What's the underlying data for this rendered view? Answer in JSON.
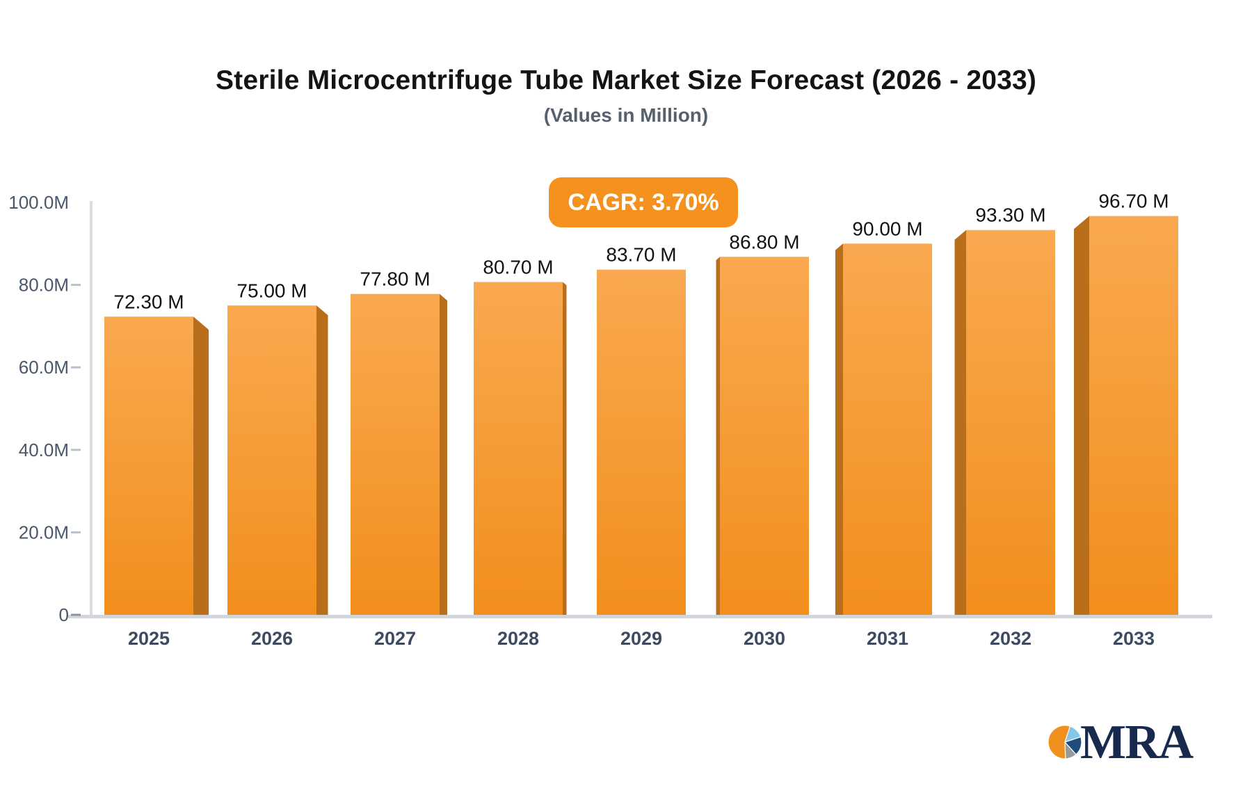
{
  "title": "Sterile Microcentrifuge Tube Market Size Forecast (2026 - 2033)",
  "subtitle": "(Values in Million)",
  "badge": {
    "label": "CAGR: 3.70%",
    "bg_color": "#F5911E",
    "text_color": "#FFFFFF"
  },
  "chart_data": {
    "type": "bar",
    "title": "Sterile Microcentrifuge Tube Market Size Forecast (2026 - 2033)",
    "subtitle": "(Values in Million)",
    "categories": [
      "2025",
      "2026",
      "2027",
      "2028",
      "2029",
      "2030",
      "2031",
      "2032",
      "2033"
    ],
    "values": [
      72.3,
      75.0,
      77.8,
      80.7,
      83.7,
      86.8,
      90.0,
      93.3,
      96.7
    ],
    "value_labels": [
      "72.30 M",
      "75.00 M",
      "77.80 M",
      "80.70 M",
      "83.70 M",
      "86.80 M",
      "90.00 M",
      "93.30 M",
      "96.70 M"
    ],
    "unit": "M",
    "xlabel": "",
    "ylabel": "",
    "ylim": [
      0,
      100
    ],
    "y_ticks": [
      {
        "value": 100,
        "label": "100.0M"
      },
      {
        "value": 80,
        "label": "80.0M"
      },
      {
        "value": 60,
        "label": "60.0M"
      },
      {
        "value": 40,
        "label": "40.0M"
      },
      {
        "value": 20,
        "label": "20.0M"
      },
      {
        "value": 0,
        "label": "0"
      }
    ],
    "grid": false,
    "legend": null,
    "style": {
      "bar_gradient_top": "#F9A950",
      "bar_gradient_bottom": "#F28E1C",
      "bar_side_color": "#B96E1C",
      "axis_line_color": "#D9DCE1",
      "baseline_color": "#D2D5DA",
      "tick_dash_color": "#BCC1C9",
      "zero_dash_color": "#8C93A1",
      "y_label_color": "#4A576B",
      "x_label_color": "#3D4A5F",
      "value_label_color": "#121212"
    }
  },
  "logo": {
    "text": "MRA",
    "text_color": "#18294E",
    "slice_colors": {
      "light_blue": "#85C7EA",
      "navy": "#1F4C7A",
      "gray": "#97999B",
      "orange": "#F0911E"
    }
  }
}
